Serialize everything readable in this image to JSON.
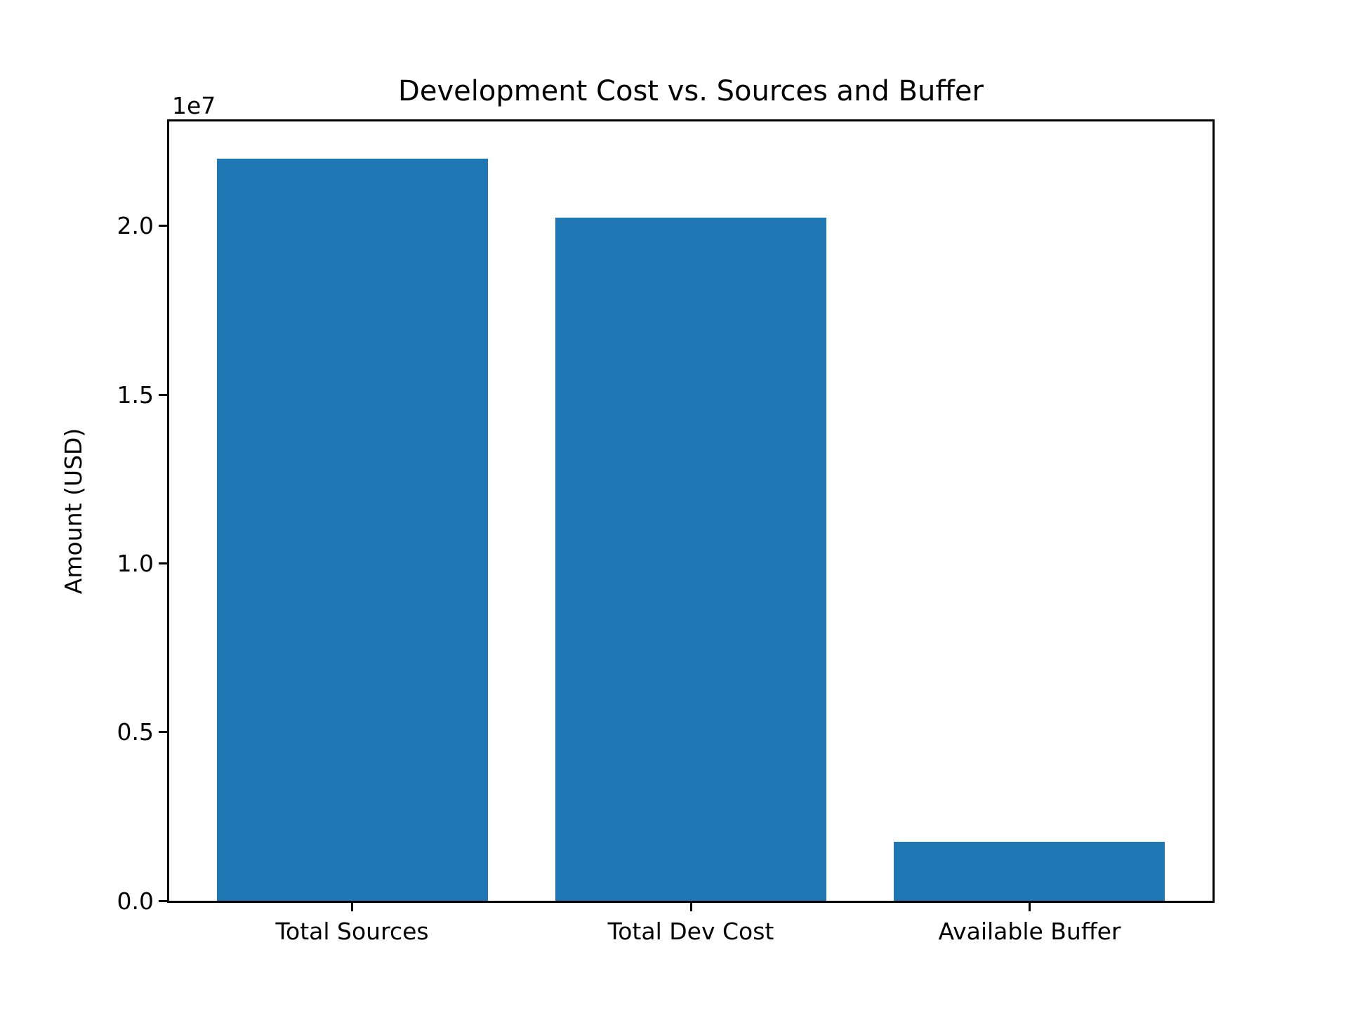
{
  "chart_data": {
    "type": "bar",
    "title": "Development Cost vs. Sources and Buffer",
    "ylabel": "Amount (USD)",
    "xlabel": "",
    "y_axis_offset_label": "1e7",
    "categories": [
      "Total Sources",
      "Total Dev Cost",
      "Available Buffer"
    ],
    "values": [
      22000000,
      20250000,
      1750000
    ],
    "yticks": [
      0,
      5000000,
      10000000,
      15000000,
      20000000
    ],
    "ytick_labels": [
      "0.0",
      "0.5",
      "1.0",
      "1.5",
      "2.0"
    ],
    "ylim": [
      0,
      23100000
    ],
    "bar_width_fraction": 0.8,
    "bar_color": "#1f77b4",
    "axis_color": "#000000",
    "background_color": "#ffffff",
    "grid": false,
    "legend": null
  }
}
